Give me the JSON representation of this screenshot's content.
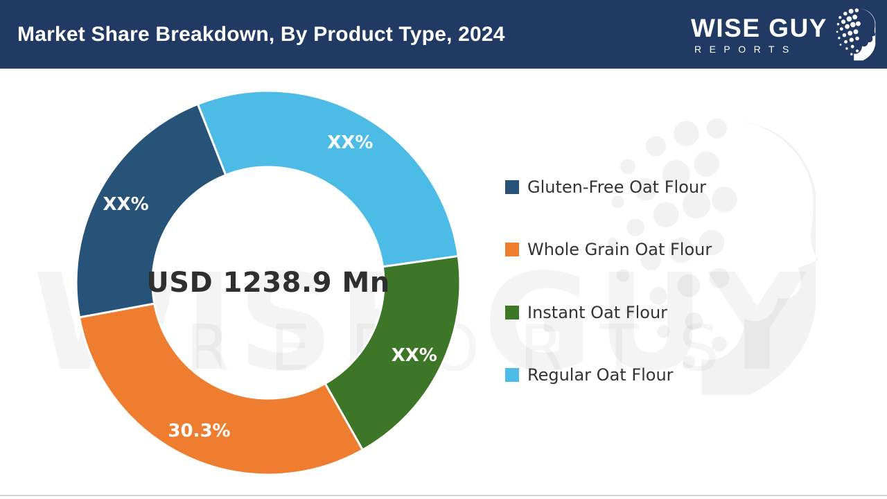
{
  "header": {
    "title": "Market Share Breakdown, By Product Type, 2024",
    "logo": {
      "line1": "WISE GUY",
      "line2": "REPORTS"
    }
  },
  "chart_data": {
    "type": "pie",
    "subtype": "donut",
    "center_label": "USD 1238.9 Mn",
    "legend_position": "right",
    "grid": false,
    "segments": [
      {
        "name": "Gluten-Free Oat Flour",
        "color": "#285379",
        "label": "XX%",
        "value_pct": 21.9,
        "start_angle": 259.6,
        "end_angle": 338.5
      },
      {
        "name": "Whole Grain Oat Flour",
        "color": "#EE7D2F",
        "label": "30.3%",
        "value_pct": 30.3,
        "start_angle": 150.5,
        "end_angle": 259.6
      },
      {
        "name": "Instant Oat Flour",
        "color": "#3E7627",
        "label": "XX%",
        "value_pct": 19.0,
        "start_angle": 82.0,
        "end_angle": 150.5
      },
      {
        "name": "Regular Oat Flour",
        "color": "#4CBCE7",
        "label": "XX%",
        "value_pct": 28.8,
        "start_angle": 338.5,
        "end_angle": 442.0
      }
    ]
  },
  "legend": {
    "items": [
      {
        "label": "Gluten-Free Oat Flour",
        "color": "#285379"
      },
      {
        "label": "Whole Grain Oat Flour",
        "color": "#EE7D2F"
      },
      {
        "label": "Instant Oat Flour",
        "color": "#3E7627"
      },
      {
        "label": "Regular Oat Flour",
        "color": "#4CBCE7"
      }
    ]
  },
  "watermark": {
    "line1": "WISE GUY",
    "line2": "REPORTS"
  },
  "colors": {
    "header_bg": "#213A64",
    "title_text": "#ffffff",
    "center_text": "#2F2F2F",
    "legend_text": "#333333",
    "bottom_rule": "#d6d6d6"
  }
}
